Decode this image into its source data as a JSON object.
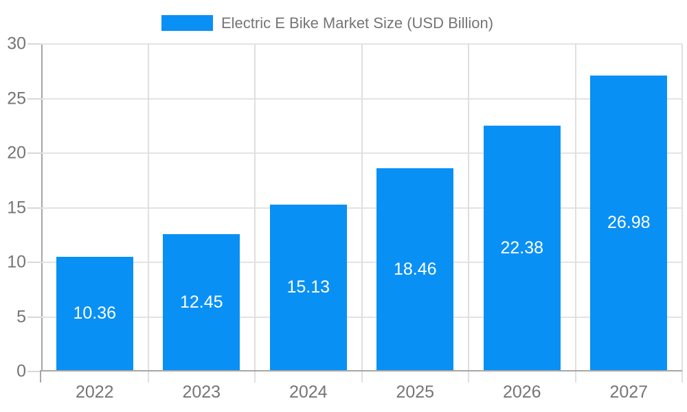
{
  "chart_data": {
    "type": "bar",
    "title": "Electric E Bike Market Size (USD Billion)",
    "categories": [
      "2022",
      "2023",
      "2024",
      "2025",
      "2026",
      "2027"
    ],
    "values": [
      10.36,
      12.45,
      15.13,
      18.46,
      22.38,
      26.98
    ],
    "value_labels": [
      "10.36",
      "12.45",
      "15.13",
      "18.46",
      "22.38",
      "26.98"
    ],
    "xlabel": "",
    "ylabel": "",
    "ylim": [
      0,
      30
    ],
    "y_ticks": [
      0,
      5,
      10,
      15,
      20,
      25,
      30
    ],
    "y_tick_labels": [
      "0",
      "5",
      "10",
      "15",
      "20",
      "25",
      "30"
    ],
    "grid": "on",
    "legend_position": "top-center",
    "colors": {
      "bar": "#0990f5",
      "axis": "#a6a6a6",
      "gridline": "#e3e3e3",
      "vgridline": "#dfdfdf",
      "tick": "#d8d8d8",
      "label_text": "#757575",
      "value_text": "#ffffff",
      "background": "#ffffff"
    }
  }
}
